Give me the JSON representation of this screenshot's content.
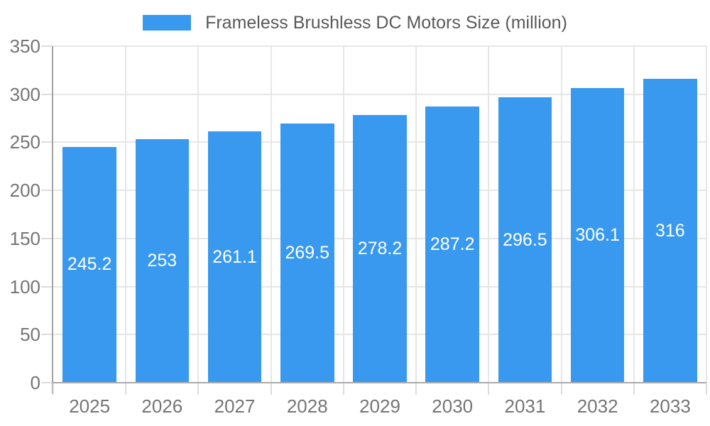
{
  "legend": {
    "label": "Frameless Brushless DC Motors Size (million)",
    "swatch_color": "#3899ee"
  },
  "chart_data": {
    "type": "bar",
    "title": "Frameless Brushless DC Motors Size (million)",
    "categories": [
      "2025",
      "2026",
      "2027",
      "2028",
      "2029",
      "2030",
      "2031",
      "2032",
      "2033"
    ],
    "series": [
      {
        "name": "Frameless Brushless DC Motors Size (million)",
        "values": [
          245.2,
          253,
          261.1,
          269.5,
          278.2,
          287.2,
          296.5,
          306.1,
          316
        ]
      }
    ],
    "xlabel": "",
    "ylabel": "",
    "ylim": [
      0,
      350
    ],
    "y_ticks": [
      0,
      50,
      100,
      150,
      200,
      250,
      300,
      350
    ],
    "grid": true,
    "legend_position": "top-center",
    "value_labels": "inside-center",
    "colors": {
      "bar": "#3899ee",
      "gridline": "#e6e6e6",
      "axis_line": "#a6a6a6",
      "tick": "#dcdcdc",
      "axis_text": "#757575",
      "legend_text": "#595959",
      "value_text": "#ffffff",
      "background": "#ffffff"
    }
  }
}
